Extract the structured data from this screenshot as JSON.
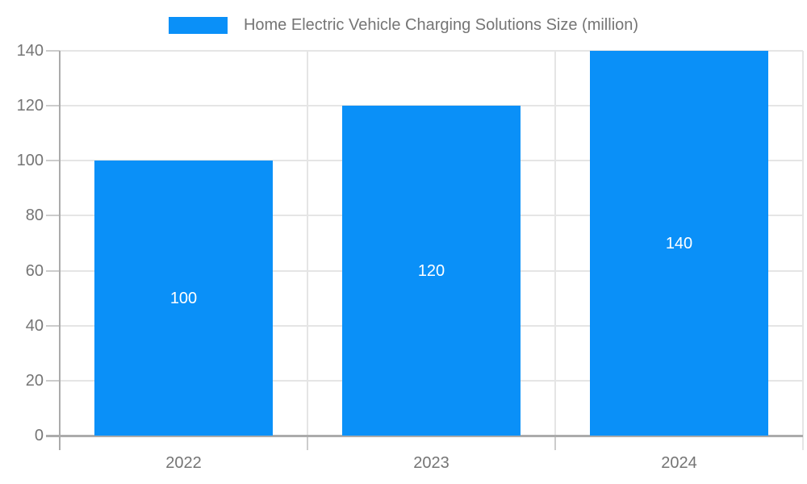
{
  "chart_data": {
    "type": "bar",
    "title": "Home Electric Vehicle Charging Solutions Size (million)",
    "categories": [
      "2022",
      "2023",
      "2024"
    ],
    "values": [
      100,
      120,
      140
    ],
    "bar_labels": [
      "100",
      "120",
      "140"
    ],
    "xlabel": "",
    "ylabel": "",
    "ylim": [
      0,
      140
    ],
    "yticks": [
      0,
      20,
      40,
      60,
      80,
      100,
      120,
      140
    ],
    "grid": true,
    "legend_position": "top",
    "colors": {
      "bar": "#0a90f8",
      "bar_label": "#ffffff",
      "axis_text": "#757575",
      "grid_line": "#e5e5e5",
      "tick_line": "#cccccc",
      "axis_line": "#ababab",
      "background": "#ffffff"
    }
  }
}
